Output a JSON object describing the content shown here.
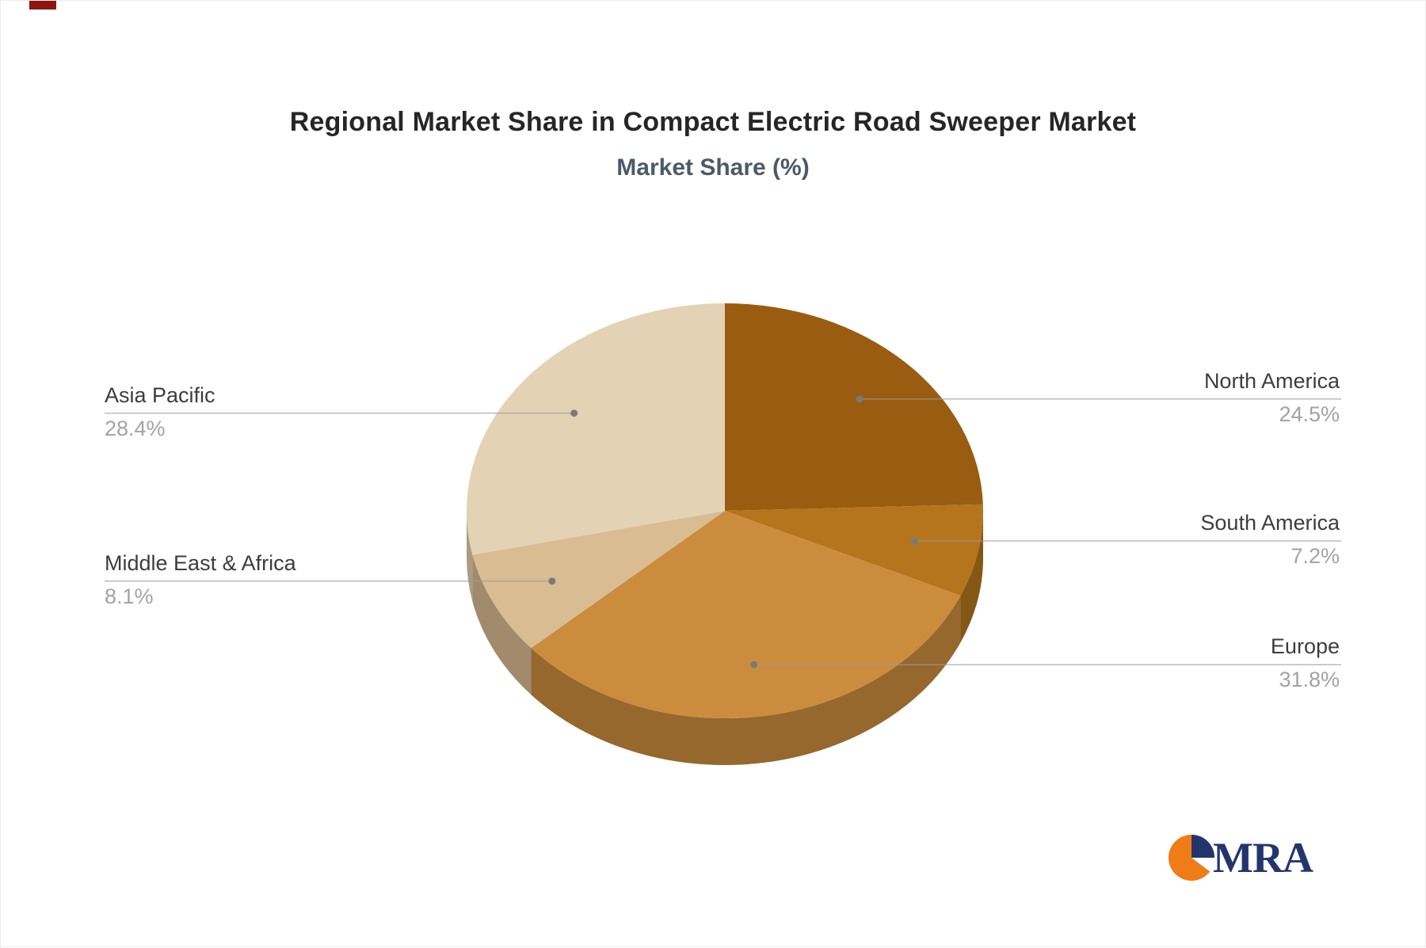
{
  "page": {
    "background": "#ffffff"
  },
  "chart_data": {
    "type": "pie",
    "title": "Regional Market Share in Compact Electric Road Sweeper Market",
    "subtitle": "Market Share (%)",
    "unit": "%",
    "style": "3d",
    "start_angle_deg": -90,
    "direction": "clockwise",
    "legend": "none",
    "labels_position": "outside-with-leader-lines",
    "slices": [
      {
        "label": "North America",
        "value": 24.5,
        "percent_label": "24.5%",
        "color": "#9a5c10",
        "label_side": "right"
      },
      {
        "label": "South America",
        "value": 7.2,
        "percent_label": "7.2%",
        "color": "#b4751c",
        "label_side": "right"
      },
      {
        "label": "Europe",
        "value": 31.8,
        "percent_label": "31.8%",
        "color": "#cb8c3e",
        "label_side": "right"
      },
      {
        "label": "Middle East & Africa",
        "value": 8.1,
        "percent_label": "8.1%",
        "color": "#d9bc92",
        "label_side": "left"
      },
      {
        "label": "Asia Pacific",
        "value": 28.4,
        "percent_label": "28.4%",
        "color": "#e4d2b5",
        "label_side": "left"
      }
    ],
    "colors": {
      "title": "#262626",
      "subtitle": "#4c5a68",
      "label_text": "#3d3d3d",
      "percent_text": "#a3a3a3",
      "leader": "#9b9b9b",
      "dot": "#7a7a7a",
      "background": "#ffffff"
    }
  },
  "logo": {
    "text": "MRA",
    "colors": {
      "orange": "#ee7c18",
      "navy": "#24356d"
    }
  }
}
